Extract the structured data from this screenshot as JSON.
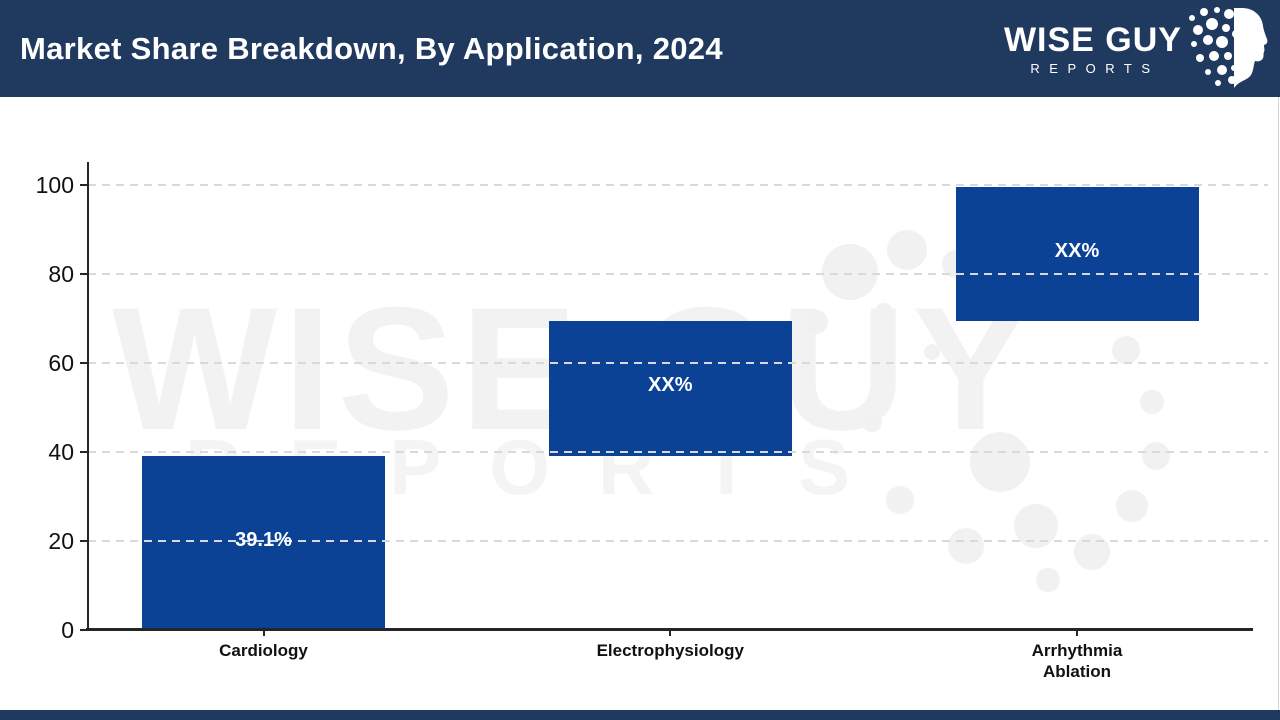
{
  "header": {
    "title": "Market Share Breakdown, By Application, 2024",
    "logo": {
      "line1": "WISE GUY",
      "line2": "REPORTS"
    }
  },
  "watermark": {
    "line1": "WISE GUY",
    "line2": "REPORTS"
  },
  "colors": {
    "header_bg": "#20395f",
    "bar": "#0b4296",
    "bar_label": "#ffffff",
    "axis": "#262626",
    "gridline": "#d9d9d9",
    "watermark": "#f2f2f2"
  },
  "chart_data": {
    "type": "bar",
    "variant": "floating-waterfall-percent",
    "title": "Market Share Breakdown, By Application, 2024",
    "categories": [
      "Cardiology",
      "Electrophysiology",
      "Arrhythmia Ablation"
    ],
    "tick_labels": [
      "Cardiology",
      "Electrophysiology",
      "Arrhythmia\nAblation"
    ],
    "segments": [
      {
        "category": "Cardiology",
        "label": "39.1%",
        "start": 0,
        "end": 39.1
      },
      {
        "category": "Electrophysiology",
        "label": "XX%",
        "start": 39.1,
        "end": 69.5
      },
      {
        "category": "Arrhythmia Ablation",
        "label": "XX%",
        "start": 69.5,
        "end": 99.6
      }
    ],
    "ylim": [
      0,
      100
    ],
    "yticks": [
      0,
      20,
      40,
      60,
      80,
      100
    ],
    "xlabel": "",
    "ylabel": "",
    "grid": "dashed-horizontal",
    "legend": false
  }
}
